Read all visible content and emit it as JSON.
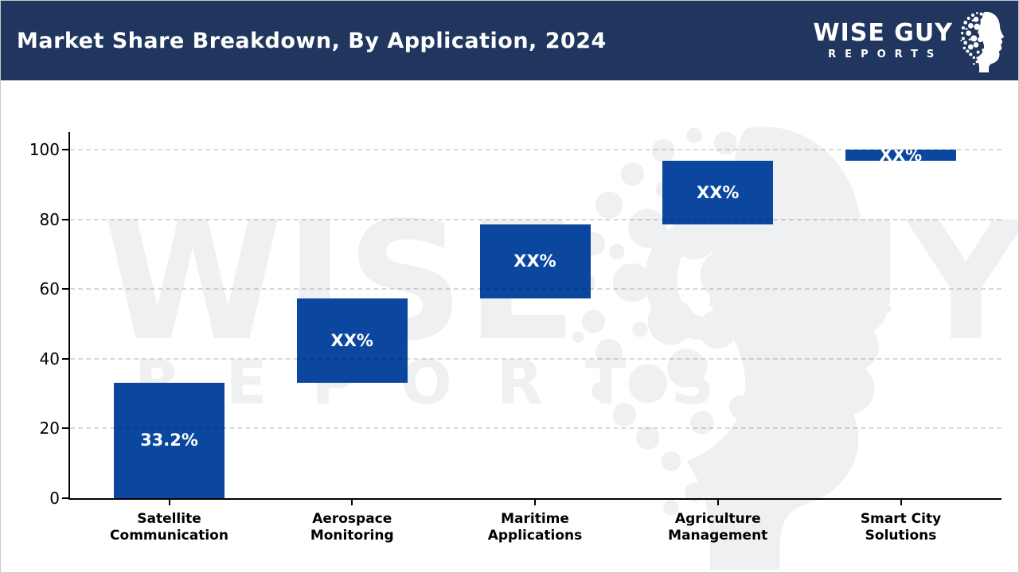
{
  "header": {
    "title": "Market Share Breakdown, By Application, 2024",
    "bg_color": "#21365e",
    "logo": {
      "line1": "WISE GUY",
      "line2": "REPORTS"
    }
  },
  "watermark": {
    "line1": "WISE GUY",
    "line2": "REPORTS"
  },
  "chart_data": {
    "type": "bar",
    "subtype": "floating-waterfall",
    "title": "Market Share Breakdown, By Application, 2024",
    "categories": [
      {
        "line1": "Satellite",
        "line2": "Communication"
      },
      {
        "line1": "Aerospace",
        "line2": "Monitoring"
      },
      {
        "line1": "Maritime",
        "line2": "Applications"
      },
      {
        "line1": "Agriculture",
        "line2": "Management"
      },
      {
        "line1": "Smart City",
        "line2": "Solutions"
      }
    ],
    "segments": [
      {
        "label": "33.2%",
        "start": 0,
        "end": 33.2
      },
      {
        "label": "XX%",
        "start": 33.2,
        "end": 57.4
      },
      {
        "label": "XX%",
        "start": 57.4,
        "end": 78.5
      },
      {
        "label": "XX%",
        "start": 78.5,
        "end": 96.8
      },
      {
        "label": "XX%",
        "start": 96.8,
        "end": 100
      }
    ],
    "ylim": [
      0,
      100
    ],
    "yticks": [
      0,
      20,
      40,
      60,
      80,
      100
    ],
    "grid": "dashed-horizontal-above-bars",
    "legend": "none",
    "bar_color": "#0c479f",
    "bar_label_color": "#ffffff",
    "axis_color": "#000000",
    "gridline_color": "rgba(0,0,0,0.15)"
  }
}
